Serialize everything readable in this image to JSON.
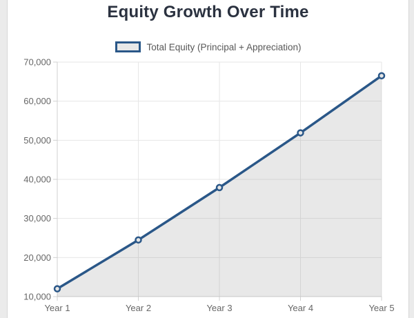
{
  "page": {
    "background_color": "#ebebeb",
    "card_background": "#ffffff",
    "card_border_color": "#d6d6d6"
  },
  "chart": {
    "title": "Equity Growth Over Time",
    "legend_label": "Total Equity (Principal + Appreciation)"
  },
  "chart_data": {
    "type": "area",
    "title": "Equity Growth Over Time",
    "categories": [
      "Year 1",
      "Year 2",
      "Year 3",
      "Year 4",
      "Year 5"
    ],
    "series": [
      {
        "name": "Total Equity (Principal + Appreciation)",
        "values": [
          12000,
          24500,
          37900,
          51900,
          66500
        ]
      }
    ],
    "xlabel": "",
    "ylabel": "",
    "ylim": [
      10000,
      70000
    ],
    "ytick_step": 10000,
    "ytick_labels": [
      "10,000",
      "20,000",
      "30,000",
      "40,000",
      "50,000",
      "60,000",
      "70,000"
    ],
    "grid": true,
    "legend_position": "top",
    "colors": {
      "line": "#2a5788",
      "point_fill": "#e6e6e6",
      "area_fill": "rgba(130,130,130,0.18)",
      "grid": "#e6e6e6",
      "axis": "#d0d0d0",
      "tick_text": "#666666",
      "title_text": "#2b3240"
    }
  }
}
